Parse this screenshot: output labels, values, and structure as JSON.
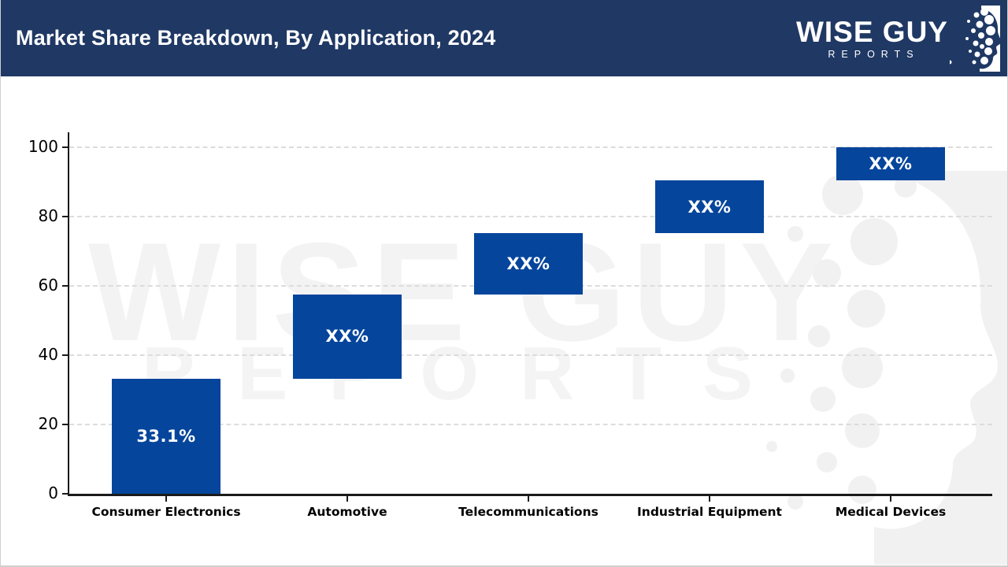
{
  "header": {
    "title": "Market Share Breakdown, By Application, 2024",
    "bg_color": "#1f3864",
    "logo": {
      "line1": "WISE GUY",
      "line2": "REPORTS"
    }
  },
  "watermark": {
    "line1": "WISE GUY",
    "line2": "REPORTS"
  },
  "colors": {
    "header_bg": "#1f3864",
    "bar_blue": "#05459c",
    "gridline": "#dcdcdc",
    "axis": "#1a1a1a",
    "watermark": "#f3f3f3"
  },
  "chart_data": {
    "type": "bar",
    "subtype": "waterfall",
    "title": "Market Share Breakdown, By Application, 2024",
    "xlabel": "",
    "ylabel": "",
    "ylim": [
      0,
      100
    ],
    "yticks": [
      0,
      20,
      40,
      60,
      80,
      100
    ],
    "grid": "horizontal-dashed",
    "bar_color": "#05459c",
    "categories": [
      "Consumer Electronics",
      "Automotive",
      "Telecommunications",
      "Industrial Equipment",
      "Medical Devices"
    ],
    "segments": [
      {
        "category": "Consumer Electronics",
        "start": 0,
        "end": 33.1,
        "label": "33.1%"
      },
      {
        "category": "Automotive",
        "start": 33.1,
        "end": 57.6,
        "label": "XX%"
      },
      {
        "category": "Telecommunications",
        "start": 57.6,
        "end": 75.2,
        "label": "XX%"
      },
      {
        "category": "Industrial Equipment",
        "start": 75.2,
        "end": 90.4,
        "label": "XX%"
      },
      {
        "category": "Medical Devices",
        "start": 90.4,
        "end": 100.0,
        "label": "XX%"
      }
    ]
  }
}
